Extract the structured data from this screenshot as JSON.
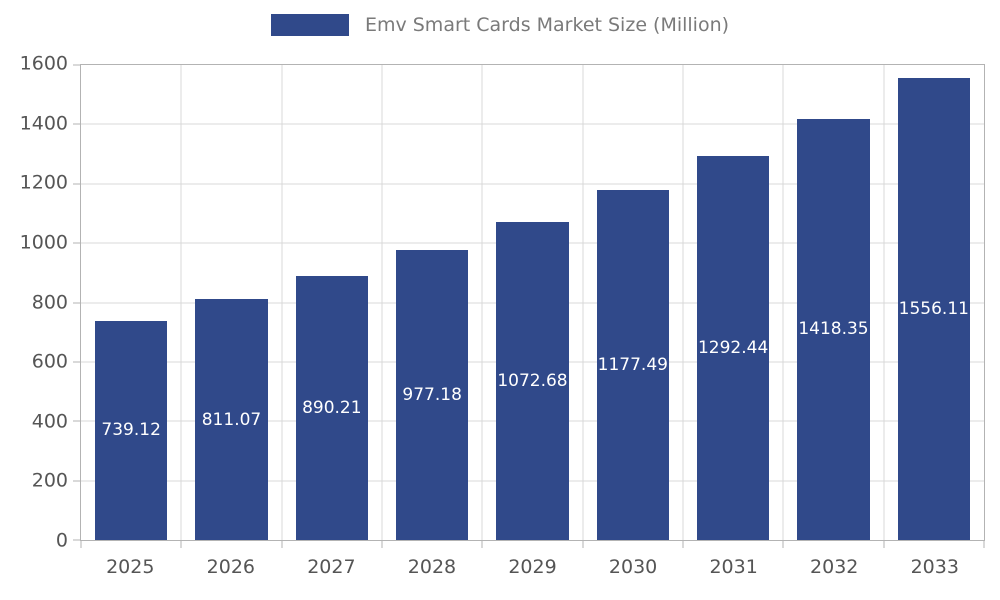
{
  "chart_data": {
    "type": "bar",
    "title": "Emv Smart Cards Market Size (Million)",
    "categories": [
      "2025",
      "2026",
      "2027",
      "2028",
      "2029",
      "2030",
      "2031",
      "2032",
      "2033"
    ],
    "values": [
      739.12,
      811.07,
      890.21,
      977.18,
      1072.68,
      1177.49,
      1292.44,
      1418.35,
      1556.11
    ],
    "xlabel": "",
    "ylabel": "",
    "ylim": [
      0,
      1600
    ],
    "yticks": [
      0,
      200,
      400,
      600,
      800,
      1000,
      1200,
      1400,
      1600
    ],
    "grid": true,
    "legend_position": "top",
    "bar_color": "#30498a",
    "value_label_color": "#ffffff",
    "axis_label_color": "#555555",
    "title_color": "#7a7a7a",
    "grid_color": "#d9d9d9",
    "frame_color": "#b3b3b3",
    "background": "#ffffff"
  }
}
